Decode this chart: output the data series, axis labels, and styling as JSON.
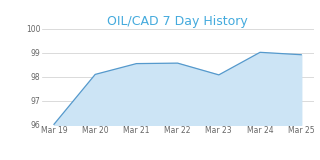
{
  "title": "OIL/CAD 7 Day History",
  "title_color": "#44aadd",
  "x_labels": [
    "Mar 19",
    "Mar 20",
    "Mar 21",
    "Mar 22",
    "Mar 23",
    "Mar 24",
    "Mar 25"
  ],
  "x_values": [
    0,
    1,
    2,
    3,
    4,
    5,
    6
  ],
  "y_data": [
    96.02,
    98.1,
    98.55,
    98.57,
    98.08,
    99.02,
    98.92
  ],
  "ylim": [
    96,
    100
  ],
  "yticks": [
    96,
    97,
    98,
    99,
    100
  ],
  "line_color": "#5599cc",
  "fill_color": "#cce4f5",
  "background_color": "#ffffff",
  "grid_color": "#cccccc",
  "tick_label_color": "#666666",
  "title_fontsize": 9,
  "tick_fontsize": 5.5,
  "figsize": [
    3.2,
    1.6
  ],
  "dpi": 100
}
